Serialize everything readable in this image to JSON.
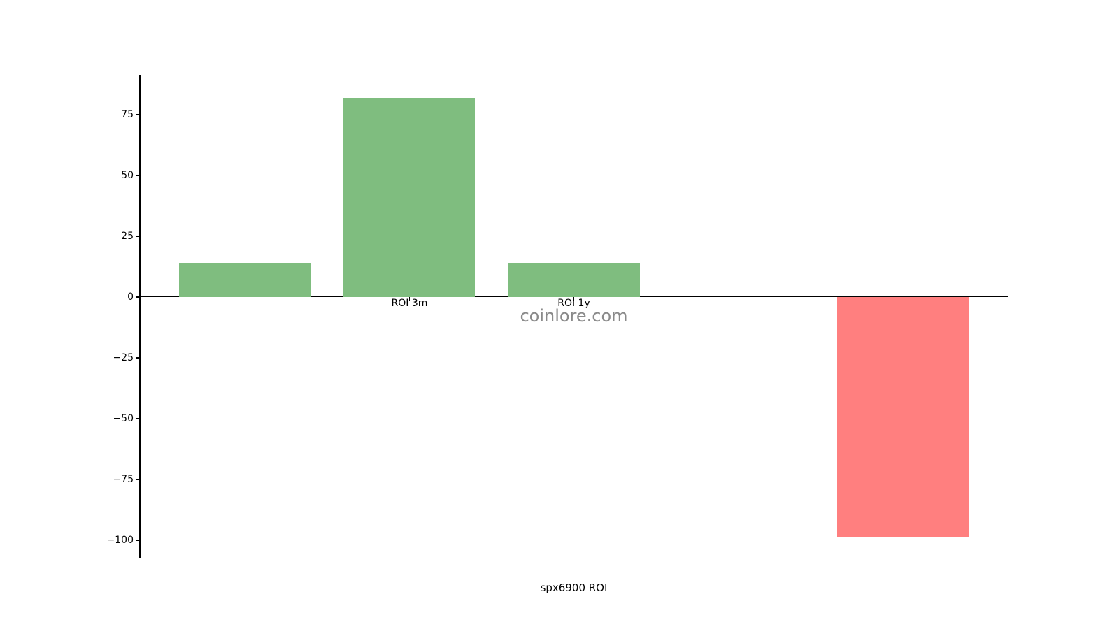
{
  "chart_data": {
    "type": "bar",
    "xlabel": "spx6900 ROI",
    "watermark": "coinlore.com",
    "categories": [
      "",
      "ROI 3m",
      "ROI 1y",
      "",
      ""
    ],
    "values": [
      14,
      82,
      14,
      0,
      -99
    ],
    "x_tick_indices": [
      0,
      1,
      2
    ],
    "y_ticks": [
      75,
      50,
      25,
      0,
      -25,
      -50,
      -75,
      -100
    ],
    "ylim": [
      -107.5,
      91.1
    ],
    "xlim": [
      -0.64,
      4.64
    ],
    "bar_width": 0.8,
    "grid": false,
    "legend": null,
    "colors": {
      "positive_bar": "#7fbd7f",
      "negative_bar": "#ff7f7f",
      "axis": "#000000",
      "tick_label": "#000000",
      "watermark": "#8a8a8a"
    }
  }
}
